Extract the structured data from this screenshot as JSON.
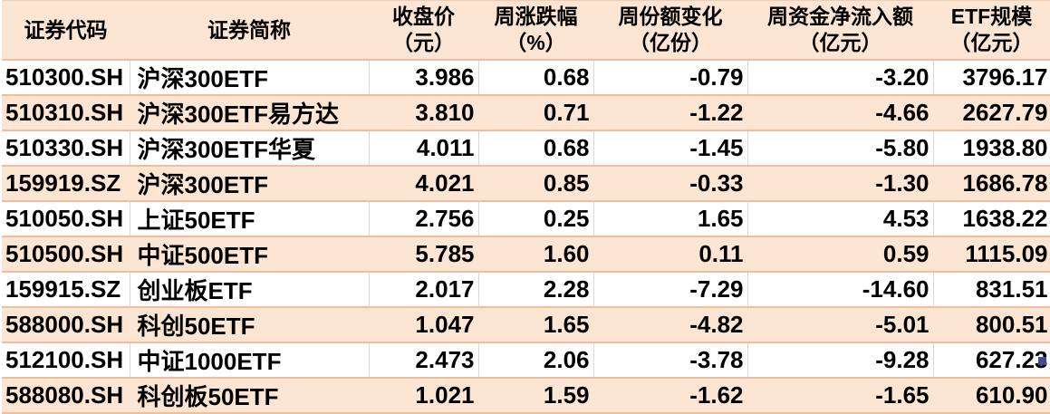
{
  "chart_data": {
    "type": "table",
    "title": "ETF weekly data table",
    "columns": [
      {
        "key": "code",
        "label": "证券代码",
        "unit": ""
      },
      {
        "key": "name",
        "label": "证券简称",
        "unit": ""
      },
      {
        "key": "close",
        "label": "收盘价",
        "unit": "（元）"
      },
      {
        "key": "pct",
        "label": "周涨跌幅",
        "unit": "（%）"
      },
      {
        "key": "share_change",
        "label": "周份额变化",
        "unit": "（亿份）"
      },
      {
        "key": "net_inflow",
        "label": "周资金净流入额",
        "unit": "（亿元）"
      },
      {
        "key": "scale",
        "label": "ETF规模",
        "unit": "（亿元）"
      }
    ],
    "rows": [
      [
        "510300.SH",
        "沪深300ETF",
        "3.986",
        "0.68",
        "-0.79",
        "-3.20",
        "3796.17"
      ],
      [
        "510310.SH",
        "沪深300ETF易方达",
        "3.810",
        "0.71",
        "-1.22",
        "-4.66",
        "2627.79"
      ],
      [
        "510330.SH",
        "沪深300ETF华夏",
        "4.011",
        "0.68",
        "-1.45",
        "-5.80",
        "1938.80"
      ],
      [
        "159919.SZ",
        "沪深300ETF",
        "4.021",
        "0.85",
        "-0.33",
        "-1.30",
        "1686.78"
      ],
      [
        "510050.SH",
        "上证50ETF",
        "2.756",
        "0.25",
        "1.65",
        "4.53",
        "1638.22"
      ],
      [
        "510500.SH",
        "中证500ETF",
        "5.785",
        "1.60",
        "0.11",
        "0.59",
        "1115.09"
      ],
      [
        "159915.SZ",
        "创业板ETF",
        "2.017",
        "2.28",
        "-7.29",
        "-14.60",
        "831.51"
      ],
      [
        "588000.SH",
        "科创50ETF",
        "1.047",
        "1.65",
        "-4.82",
        "-5.01",
        "800.51"
      ],
      [
        "512100.SH",
        "中证1000ETF",
        "2.473",
        "2.06",
        "-3.78",
        "-9.28",
        "627.23"
      ],
      [
        "588080.SH",
        "科创板50ETF",
        "1.021",
        "1.59",
        "-1.62",
        "-1.65",
        "610.90"
      ]
    ]
  },
  "colors": {
    "header_bg": "#fce5d2",
    "row_alt_bg": "#fce5d2",
    "row_base_bg": "#ffffff",
    "row_separator": "#f2bd9a",
    "gridline": "#d9d9d9",
    "text": "#000000",
    "selection_marker": "#3e4c96"
  }
}
